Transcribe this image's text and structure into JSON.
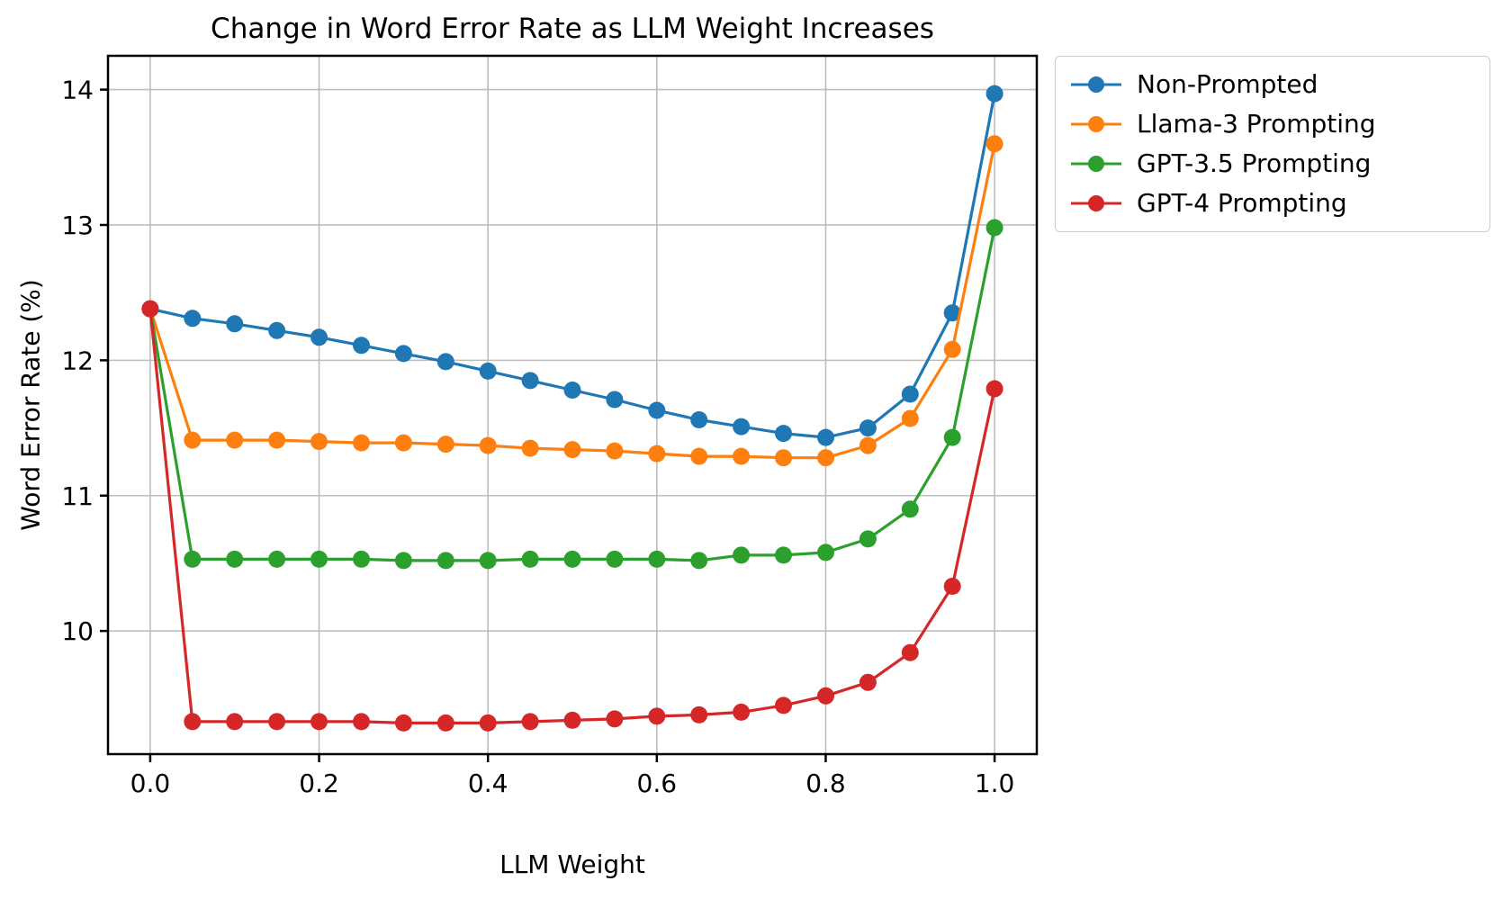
{
  "chart_data": {
    "type": "line",
    "title": "Change in Word Error Rate as LLM Weight Increases",
    "xlabel": "LLM Weight",
    "ylabel": "Word Error Rate (%)",
    "x": [
      0.0,
      0.05,
      0.1,
      0.15,
      0.2,
      0.25,
      0.3,
      0.35,
      0.4,
      0.45,
      0.5,
      0.55,
      0.6,
      0.65,
      0.7,
      0.75,
      0.8,
      0.85,
      0.9,
      0.95,
      1.0
    ],
    "series": [
      {
        "name": "Non-Prompted",
        "color": "#1f77b4",
        "values": [
          12.38,
          12.31,
          12.27,
          12.22,
          12.17,
          12.11,
          12.05,
          11.99,
          11.92,
          11.85,
          11.78,
          11.71,
          11.63,
          11.56,
          11.51,
          11.46,
          11.43,
          11.5,
          11.75,
          12.35,
          13.97
        ]
      },
      {
        "name": "Llama-3 Prompting",
        "color": "#ff7f0e",
        "values": [
          12.38,
          11.41,
          11.41,
          11.41,
          11.4,
          11.39,
          11.39,
          11.38,
          11.37,
          11.35,
          11.34,
          11.33,
          11.31,
          11.29,
          11.29,
          11.28,
          11.28,
          11.37,
          11.57,
          12.08,
          13.6
        ]
      },
      {
        "name": "GPT-3.5 Prompting",
        "color": "#2ca02c",
        "values": [
          12.38,
          10.53,
          10.53,
          10.53,
          10.53,
          10.53,
          10.52,
          10.52,
          10.52,
          10.53,
          10.53,
          10.53,
          10.53,
          10.52,
          10.56,
          10.56,
          10.58,
          10.68,
          10.9,
          11.43,
          12.98
        ]
      },
      {
        "name": "GPT-4 Prompting",
        "color": "#d62728",
        "values": [
          12.38,
          9.33,
          9.33,
          9.33,
          9.33,
          9.33,
          9.32,
          9.32,
          9.32,
          9.33,
          9.34,
          9.35,
          9.37,
          9.38,
          9.4,
          9.45,
          9.52,
          9.62,
          9.84,
          10.33,
          11.79
        ]
      }
    ],
    "xlim": [
      -0.05,
      1.05
    ],
    "ylim": [
      9.09,
      14.25
    ],
    "xticks": [
      0.0,
      0.2,
      0.4,
      0.6,
      0.8,
      1.0
    ],
    "xtick_labels": [
      "0.0",
      "0.2",
      "0.4",
      "0.6",
      "0.8",
      "1.0"
    ],
    "yticks": [
      10,
      11,
      12,
      13,
      14
    ],
    "ytick_labels": [
      "10",
      "11",
      "12",
      "13",
      "14"
    ],
    "grid": true,
    "grid_color": "#bdbdbd",
    "axis_color": "#000000",
    "marker": "o",
    "legend_position": "outside upper right"
  }
}
